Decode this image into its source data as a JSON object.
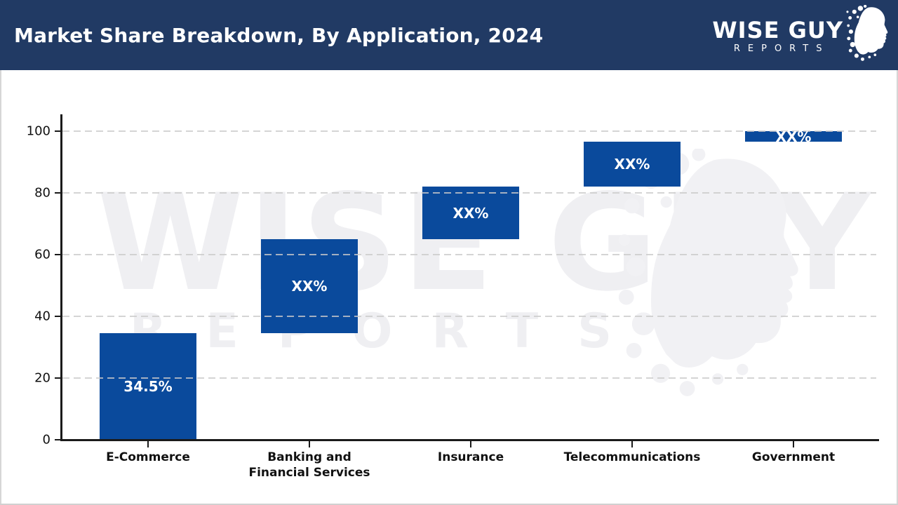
{
  "header": {
    "title": "Market Share Breakdown, By Application, 2024",
    "logo": {
      "name": "WISE GUY",
      "subtitle": "REPORTS"
    }
  },
  "watermark": {
    "line1": "WISE GUY",
    "line2": "REPORTS"
  },
  "chart_data": {
    "type": "bar",
    "subtype": "waterfall",
    "title": "Market Share Breakdown, By Application, 2024",
    "unit": "percent market share",
    "categories": [
      "E-Commerce",
      "Banking and Financial Services",
      "Insurance",
      "Telecommunications",
      "Government"
    ],
    "segments": [
      {
        "category": "E-Commerce",
        "axis_label": "E-Commerce",
        "start": 0,
        "end": 34.5,
        "value_label": "34.5%"
      },
      {
        "category": "Banking and Financial Services",
        "axis_label": "Banking and\nFinancial Services",
        "start": 34.5,
        "end": 65,
        "value_label": "XX%"
      },
      {
        "category": "Insurance",
        "axis_label": "Insurance",
        "start": 65,
        "end": 82,
        "value_label": "XX%"
      },
      {
        "category": "Telecommunications",
        "axis_label": "Telecommunications",
        "start": 82,
        "end": 96.5,
        "value_label": "XX%"
      },
      {
        "category": "Government",
        "axis_label": "Government",
        "start": 96.5,
        "end": 100,
        "value_label": "XX%"
      }
    ],
    "yticks": [
      0,
      20,
      40,
      60,
      80,
      100
    ],
    "ylim": [
      0,
      105
    ],
    "grid": "horizontal dashed, drawn over bars",
    "legend": "none",
    "bar_color": "#0a4a9c",
    "header_color": "#213a64",
    "watermark_color": "#efeff2"
  }
}
